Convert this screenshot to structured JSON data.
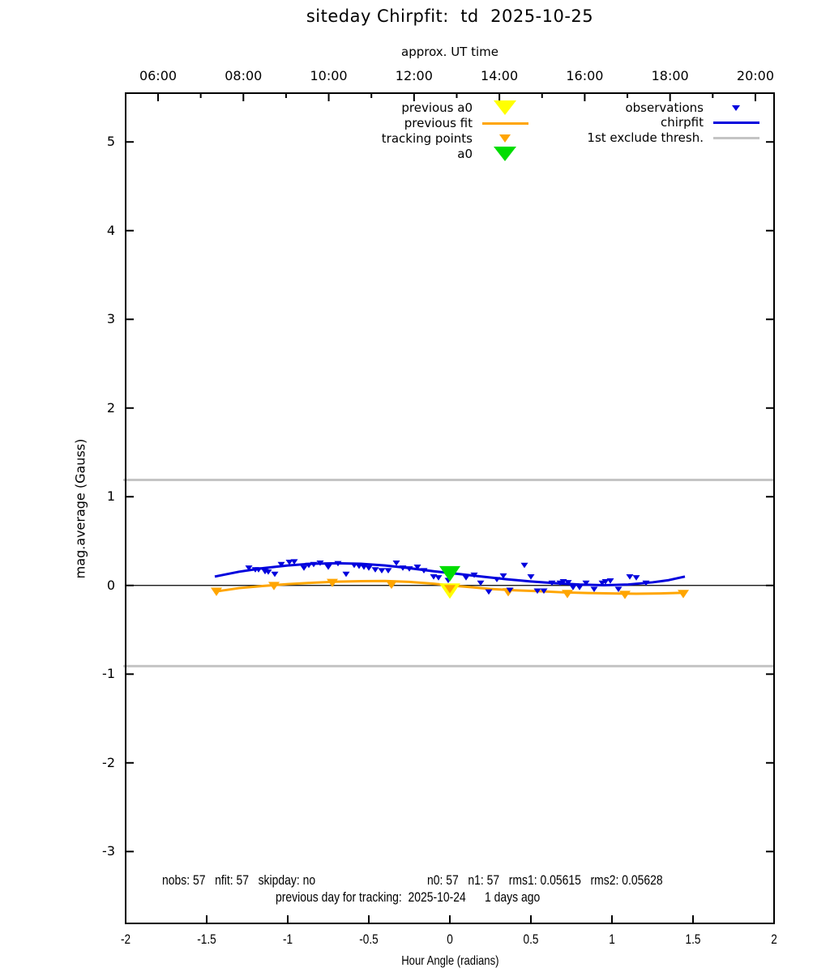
{
  "title": "siteday Chirpfit:  td  2025-10-25",
  "colors": {
    "blue": "#0000dd",
    "orange": "#ffa500",
    "yellow": "#ffff00",
    "green": "#00dd00",
    "gray": "#c4c4c4",
    "black": "#000000"
  },
  "stats": {
    "line1_left": "nobs: 57   nfit: 57   skipday: no",
    "line1_right": "n0: 57   n1: 57   rms1: 0.05615   rms2: 0.05628",
    "line2": "previous day for tracking:  2025-10-24      1 days ago"
  },
  "chart_data": {
    "type": "scatter",
    "title": "siteday Chirpfit:  td  2025-10-25",
    "top_axis": {
      "title": "approx. UT time",
      "start_hour": 6,
      "start_frac": 0.05,
      "frac_per_hour": 0.0658,
      "major_hours": [
        6,
        8,
        10,
        12,
        14,
        16,
        18,
        20
      ],
      "major_labels": [
        "06:00",
        "08:00",
        "10:00",
        "12:00",
        "14:00",
        "16:00",
        "18:00",
        "20:00"
      ],
      "minor_hours": [
        7,
        9,
        11,
        13,
        15,
        17,
        19
      ]
    },
    "x_axis": {
      "label": "Hour Angle (radians)",
      "lim": [
        -2,
        2
      ],
      "ticks": [
        -2,
        -1.5,
        -1,
        -0.5,
        0,
        0.5,
        1,
        1.5,
        2
      ],
      "tick_labels": [
        "-2",
        "-1.5",
        "-1",
        "-0.5",
        "0",
        "0.5",
        "1",
        "1.5",
        "2"
      ]
    },
    "y_axis": {
      "label": "mag.average (Gauss)",
      "lim": [
        -3.81,
        5.55
      ],
      "ticks": [
        -3,
        -2,
        -1,
        0,
        1,
        2,
        3,
        4,
        5
      ],
      "tick_labels": [
        "-3",
        "-2",
        "-1",
        "0",
        "1",
        "2",
        "3",
        "4",
        "5"
      ]
    },
    "zero_line": 0,
    "exclude_thresholds": [
      1.19,
      -0.91
    ],
    "legend": {
      "left": [
        {
          "label": "previous a0",
          "marker": "big-triangle",
          "color": "yellow"
        },
        {
          "label": "previous fit",
          "marker": "line",
          "color": "orange"
        },
        {
          "label": "tracking points",
          "marker": "small-triangle",
          "color": "orange"
        },
        {
          "label": "a0",
          "marker": "big-triangle",
          "color": "green"
        }
      ],
      "right": [
        {
          "label": "observations",
          "marker": "tiny-triangle",
          "color": "blue"
        },
        {
          "label": "chirpfit",
          "marker": "line",
          "color": "blue"
        },
        {
          "label": "1st exclude thresh.",
          "marker": "line",
          "color": "gray"
        }
      ]
    },
    "series": {
      "observations": {
        "color": "blue",
        "marker": "triangle-down",
        "points": [
          [
            -1.24,
            0.2
          ],
          [
            -1.2,
            0.18
          ],
          [
            -1.18,
            0.18
          ],
          [
            -1.14,
            0.16
          ],
          [
            -1.12,
            0.155
          ],
          [
            -1.08,
            0.13
          ],
          [
            -1.04,
            0.24
          ],
          [
            -0.99,
            0.265
          ],
          [
            -0.96,
            0.27
          ],
          [
            -0.9,
            0.2
          ],
          [
            -0.87,
            0.23
          ],
          [
            -0.84,
            0.24
          ],
          [
            -0.8,
            0.255
          ],
          [
            -0.75,
            0.21
          ],
          [
            -0.69,
            0.25
          ],
          [
            -0.64,
            0.13
          ],
          [
            -0.59,
            0.23
          ],
          [
            -0.56,
            0.22
          ],
          [
            -0.53,
            0.21
          ],
          [
            -0.5,
            0.2
          ],
          [
            -0.46,
            0.18
          ],
          [
            -0.42,
            0.17
          ],
          [
            -0.38,
            0.17
          ],
          [
            -0.33,
            0.255
          ],
          [
            -0.29,
            0.2
          ],
          [
            -0.25,
            0.19
          ],
          [
            -0.2,
            0.21
          ],
          [
            -0.16,
            0.17
          ],
          [
            -0.1,
            0.1
          ],
          [
            -0.07,
            0.09
          ],
          [
            -0.01,
            0.06
          ],
          [
            0.1,
            0.09
          ],
          [
            0.15,
            0.12
          ],
          [
            0.19,
            0.03
          ],
          [
            0.24,
            -0.07
          ],
          [
            0.29,
            0.07
          ],
          [
            0.33,
            0.11
          ],
          [
            0.37,
            -0.05
          ],
          [
            0.46,
            0.23
          ],
          [
            0.5,
            0.1
          ],
          [
            0.54,
            -0.06
          ],
          [
            0.58,
            -0.06
          ],
          [
            0.63,
            0.03
          ],
          [
            0.68,
            0.03
          ],
          [
            0.7,
            0.045
          ],
          [
            0.73,
            0.035
          ],
          [
            0.76,
            -0.02
          ],
          [
            0.8,
            -0.02
          ],
          [
            0.84,
            0.03
          ],
          [
            0.89,
            -0.04
          ],
          [
            0.94,
            0.03
          ],
          [
            0.96,
            0.045
          ],
          [
            0.99,
            0.055
          ],
          [
            1.04,
            -0.04
          ],
          [
            1.11,
            0.1
          ],
          [
            1.15,
            0.09
          ],
          [
            1.21,
            0.03
          ]
        ]
      },
      "chirpfit": {
        "color": "blue",
        "kind": "line",
        "points": [
          [
            -1.45,
            0.1
          ],
          [
            -1.3,
            0.155
          ],
          [
            -1.15,
            0.195
          ],
          [
            -1.0,
            0.225
          ],
          [
            -0.85,
            0.245
          ],
          [
            -0.7,
            0.25
          ],
          [
            -0.55,
            0.245
          ],
          [
            -0.4,
            0.225
          ],
          [
            -0.25,
            0.195
          ],
          [
            -0.1,
            0.16
          ],
          [
            0.05,
            0.13
          ],
          [
            0.2,
            0.1
          ],
          [
            0.35,
            0.07
          ],
          [
            0.5,
            0.045
          ],
          [
            0.65,
            0.025
          ],
          [
            0.8,
            0.01
          ],
          [
            0.95,
            0.003
          ],
          [
            1.1,
            0.01
          ],
          [
            1.25,
            0.035
          ],
          [
            1.35,
            0.06
          ],
          [
            1.45,
            0.1
          ]
        ]
      },
      "previous_fit": {
        "color": "orange",
        "kind": "line",
        "points": [
          [
            -1.45,
            -0.07
          ],
          [
            -1.3,
            -0.03
          ],
          [
            -1.15,
            -0.005
          ],
          [
            -1.0,
            0.015
          ],
          [
            -0.85,
            0.03
          ],
          [
            -0.7,
            0.042
          ],
          [
            -0.55,
            0.048
          ],
          [
            -0.4,
            0.05
          ],
          [
            -0.25,
            0.04
          ],
          [
            -0.1,
            0.02
          ],
          [
            0.0,
            0.0
          ],
          [
            0.1,
            -0.015
          ],
          [
            0.25,
            -0.04
          ],
          [
            0.4,
            -0.055
          ],
          [
            0.55,
            -0.065
          ],
          [
            0.7,
            -0.078
          ],
          [
            0.85,
            -0.085
          ],
          [
            1.0,
            -0.09
          ],
          [
            1.15,
            -0.093
          ],
          [
            1.3,
            -0.09
          ],
          [
            1.45,
            -0.082
          ]
        ]
      },
      "tracking_points": {
        "color": "orange",
        "marker": "triangle-down",
        "points": [
          [
            -1.44,
            -0.065
          ],
          [
            -1.085,
            0.0
          ],
          [
            -0.725,
            0.035
          ],
          [
            -0.36,
            0.015
          ],
          [
            0.0,
            -0.035
          ],
          [
            0.36,
            -0.07
          ],
          [
            0.725,
            -0.09
          ],
          [
            1.08,
            -0.1
          ],
          [
            1.44,
            -0.09
          ]
        ]
      },
      "previous_a0": {
        "color": "yellow",
        "marker": "triangle-down",
        "points": [
          [
            0.0,
            -0.05
          ]
        ]
      },
      "a0": {
        "color": "green",
        "marker": "triangle-down",
        "points": [
          [
            0.0,
            0.145
          ]
        ]
      }
    }
  }
}
